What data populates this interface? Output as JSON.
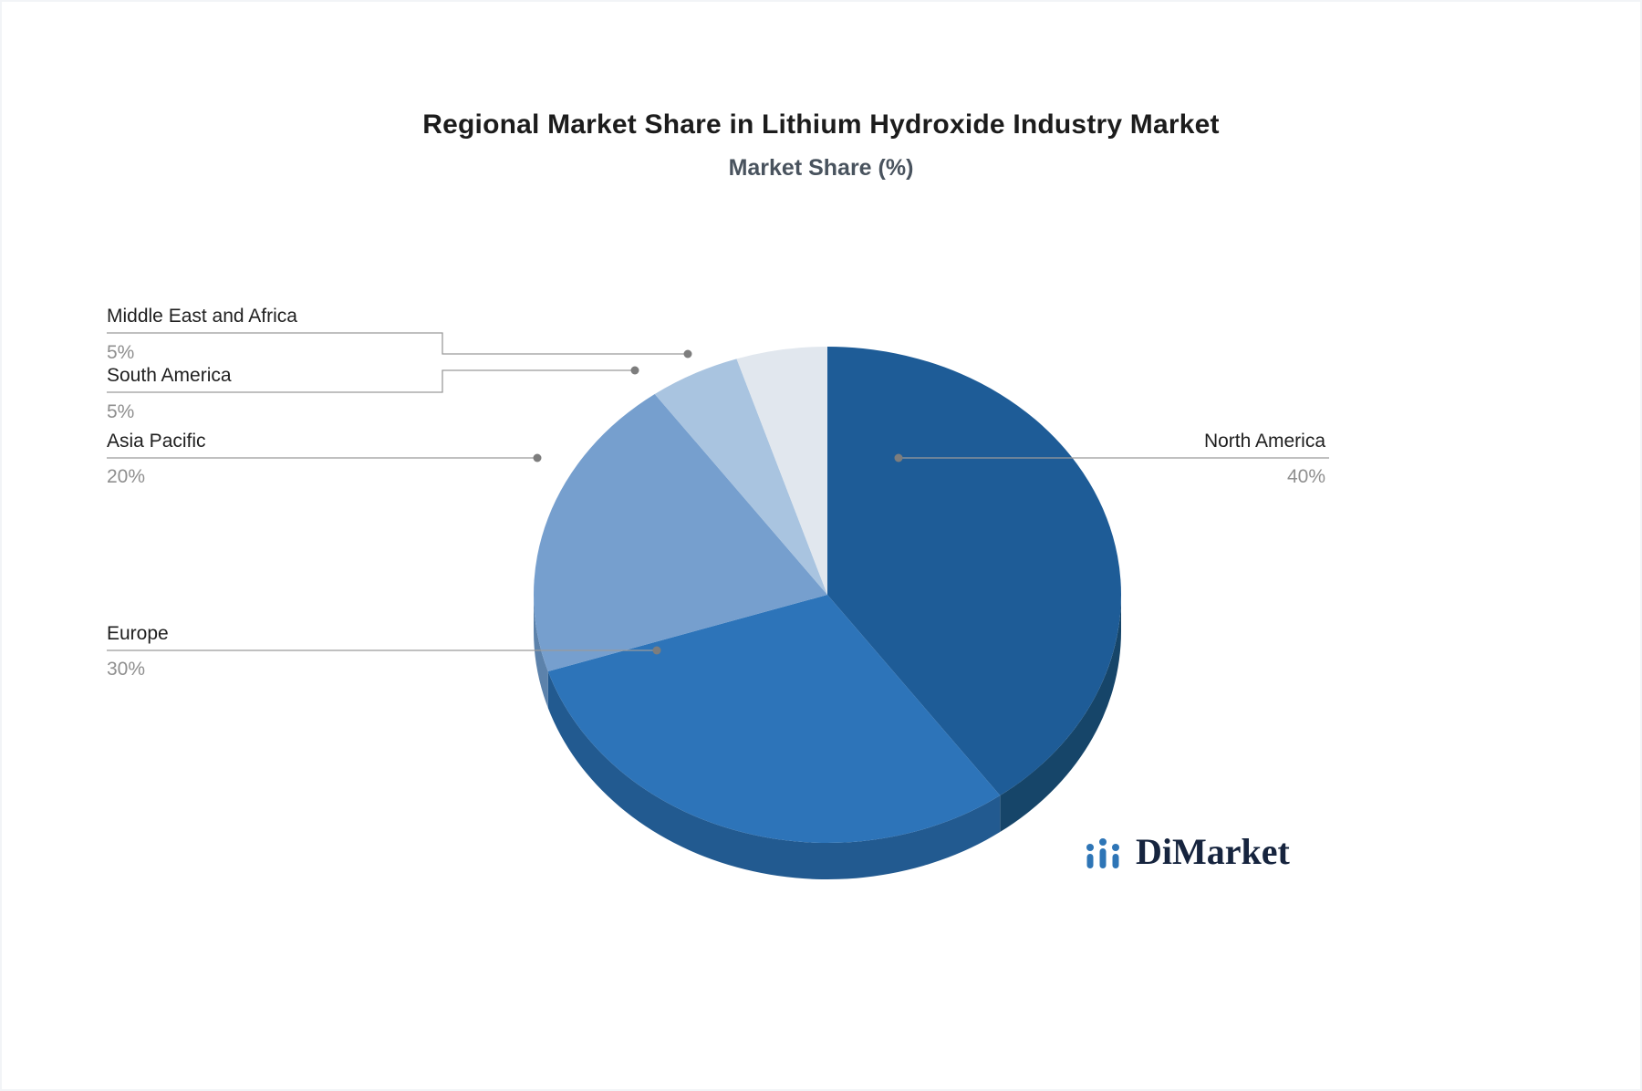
{
  "header": {
    "title": "Regional Market Share in Lithium Hydroxide Industry Market",
    "subtitle": "Market Share (%)"
  },
  "chart_data": {
    "type": "pie",
    "title": "Regional Market Share in Lithium Hydroxide Industry Market",
    "subtitle": "Market Share (%)",
    "unit": "%",
    "style": "3d-pie",
    "direction": "clockwise",
    "start_angle_deg": 0,
    "legend_position": "callout-labels",
    "slices": [
      {
        "label": "North America",
        "value": 40,
        "display_value": "40%",
        "color": "#1e5c97",
        "side_color": "#164569"
      },
      {
        "label": "Europe",
        "value": 30,
        "display_value": "30%",
        "color": "#2d74b9",
        "side_color": "#225a90"
      },
      {
        "label": "Asia Pacific",
        "value": 20,
        "display_value": "20%",
        "color": "#769fce",
        "side_color": "#5c82ab"
      },
      {
        "label": "South America",
        "value": 5,
        "display_value": "5%",
        "color": "#a9c4e0",
        "side_color": "#8aa5bf"
      },
      {
        "label": "Middle East and Africa",
        "value": 5,
        "display_value": "5%",
        "color": "#e1e7ee",
        "side_color": "#c0cad5"
      }
    ]
  },
  "branding": {
    "logo_text": "DiMarket",
    "logo_icon": "bar-chart-icon",
    "accent_color": "#2e75b6"
  }
}
